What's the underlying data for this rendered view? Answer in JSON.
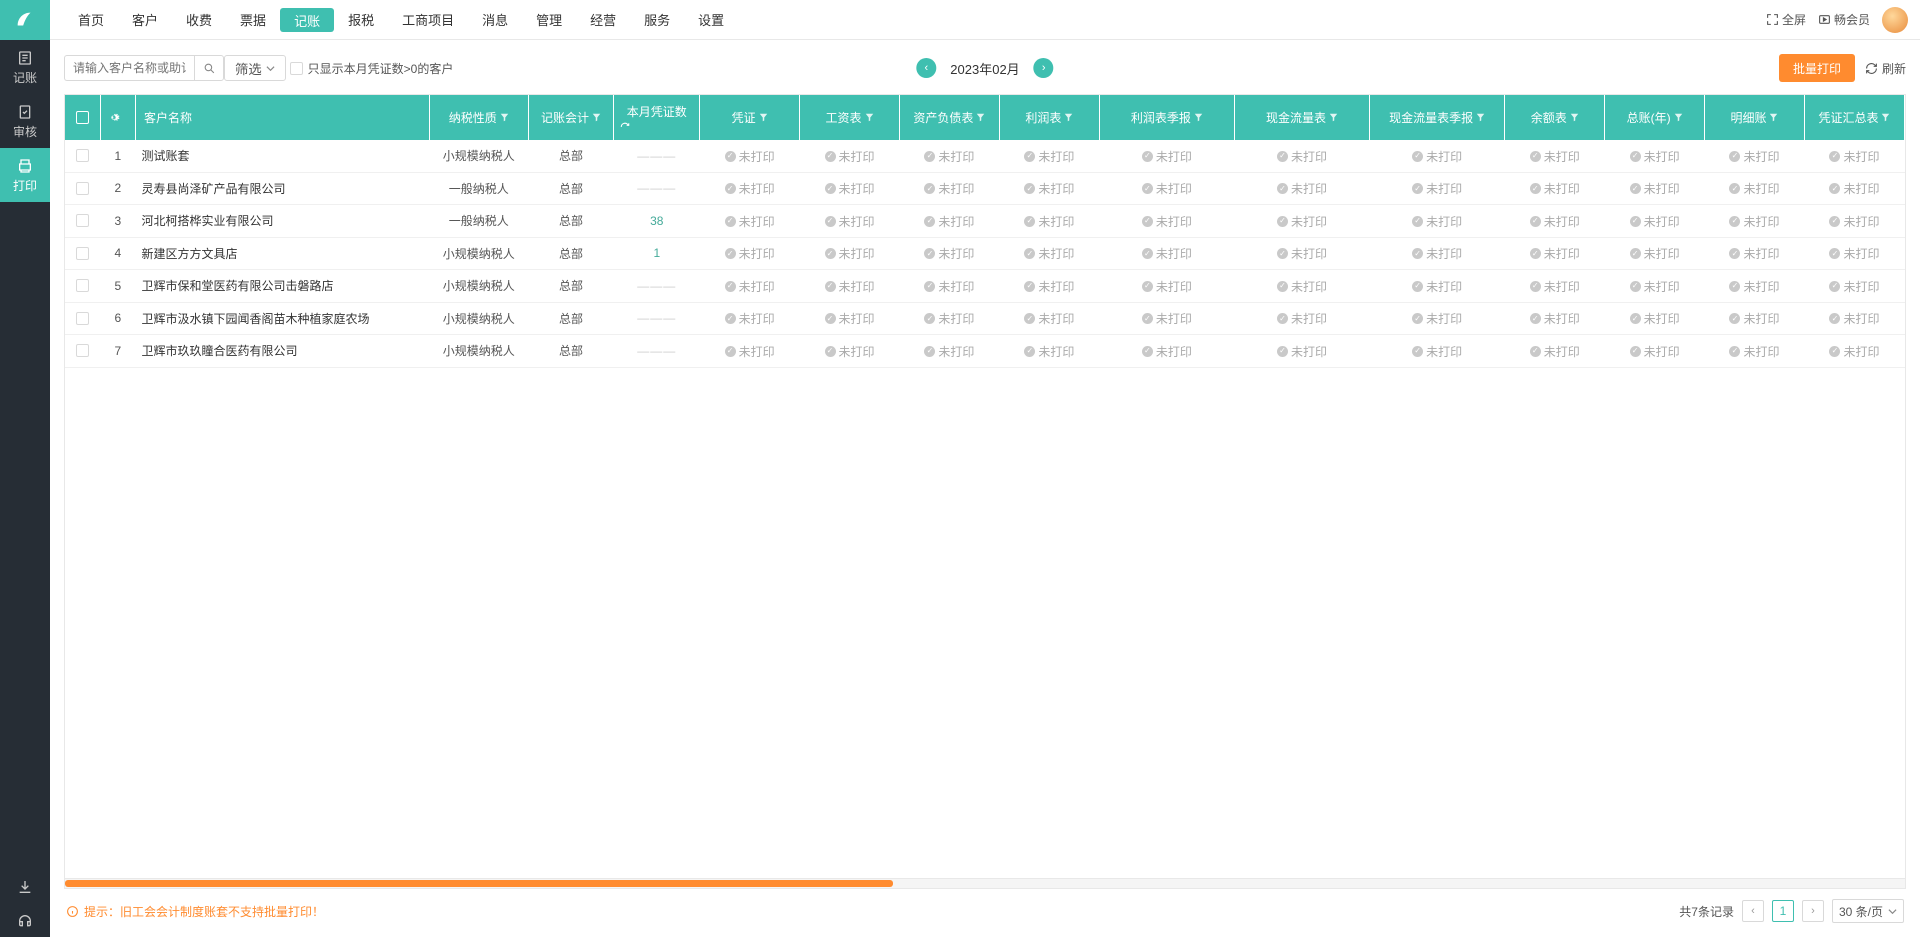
{
  "topnav": {
    "items": [
      "首页",
      "客户",
      "收费",
      "票据",
      "记账",
      "报税",
      "工商项目",
      "消息",
      "管理",
      "经营",
      "服务",
      "设置"
    ],
    "active_index": 4
  },
  "topright": {
    "fullscreen": "全屏",
    "member": "畅会员"
  },
  "sidebar": {
    "items": [
      {
        "label": "记账",
        "icon": "ledger"
      },
      {
        "label": "审核",
        "icon": "audit"
      },
      {
        "label": "打印",
        "icon": "print"
      }
    ],
    "active_index": 2
  },
  "toolbar": {
    "search_placeholder": "请输入客户名称或助记码",
    "filter_label": "筛选",
    "only_voucher_label": "只显示本月凭证数>0的客户",
    "date": "2023年02月",
    "batch_print": "批量打印",
    "refresh": "刷新"
  },
  "columns": [
    {
      "key": "name",
      "label": "客户名称",
      "filter": false
    },
    {
      "key": "tax",
      "label": "纳税性质",
      "filter": true
    },
    {
      "key": "accountant",
      "label": "记账会计",
      "filter": true
    },
    {
      "key": "voucher_count",
      "label": "本月凭证数",
      "refresh": true
    },
    {
      "key": "voucher",
      "label": "凭证",
      "filter": true
    },
    {
      "key": "salary",
      "label": "工资表",
      "filter": true
    },
    {
      "key": "balance_sheet",
      "label": "资产负债表",
      "filter": true
    },
    {
      "key": "profit",
      "label": "利润表",
      "filter": true
    },
    {
      "key": "profit_q",
      "label": "利润表季报",
      "filter": true
    },
    {
      "key": "cashflow",
      "label": "现金流量表",
      "filter": true
    },
    {
      "key": "cashflow_q",
      "label": "现金流量表季报",
      "filter": true
    },
    {
      "key": "balance",
      "label": "余额表",
      "filter": true
    },
    {
      "key": "ledger",
      "label": "总账(年)",
      "filter": true
    },
    {
      "key": "detail",
      "label": "明细账",
      "filter": true
    },
    {
      "key": "voucher_sum",
      "label": "凭证汇总表",
      "filter": true
    }
  ],
  "status_text": "未打印",
  "rows": [
    {
      "idx": 1,
      "name": "测试账套",
      "tax": "小规模纳税人",
      "accountant": "总部",
      "vc": "—"
    },
    {
      "idx": 2,
      "name": "灵寿县尚泽矿产品有限公司",
      "tax": "一般纳税人",
      "accountant": "总部",
      "vc": "—"
    },
    {
      "idx": 3,
      "name": "河北柯搭桦实业有限公司",
      "tax": "一般纳税人",
      "accountant": "总部",
      "vc": "38"
    },
    {
      "idx": 4,
      "name": "新建区方方文具店",
      "tax": "小规模纳税人",
      "accountant": "总部",
      "vc": "1"
    },
    {
      "idx": 5,
      "name": "卫辉市保和堂医药有限公司击磐路店",
      "tax": "小规模纳税人",
      "accountant": "总部",
      "vc": "—"
    },
    {
      "idx": 6,
      "name": "卫辉市汲水镇下园闻香阁苗木种植家庭农场",
      "tax": "小规模纳税人",
      "accountant": "总部",
      "vc": "—"
    },
    {
      "idx": 7,
      "name": "卫辉市玖玖瞳合医药有限公司",
      "tax": "小规模纳税人",
      "accountant": "总部",
      "vc": "—"
    }
  ],
  "footer": {
    "tip": "提示：旧工会会计制度账套不支持批量打印！",
    "total": "共7条记录",
    "page": "1",
    "page_size": "30 条/页"
  },
  "colors": {
    "primary": "#3fbfb0",
    "accent": "#ff8b2f",
    "sidebar_bg": "#262d35"
  }
}
